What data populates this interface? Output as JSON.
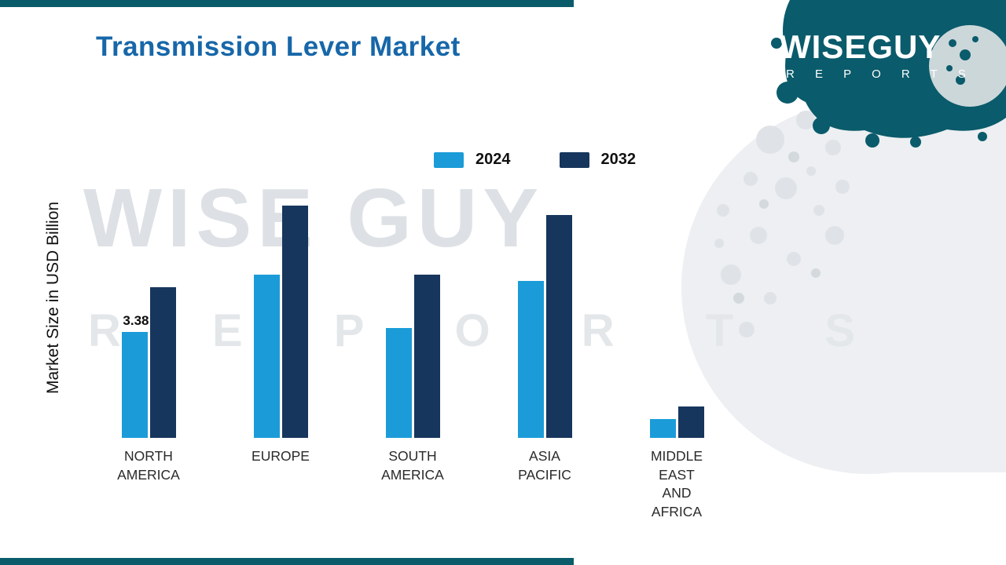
{
  "logo": {
    "line1": "WISEGUY",
    "line2": "R E P O R T S"
  },
  "watermark": {
    "line1": "WISE GUY",
    "line2": "R E P O R T S"
  },
  "chart_data": {
    "type": "bar",
    "title": "Transmission Lever Market",
    "ylabel": "Market Size in USD Billion",
    "xlabel": "",
    "categories": [
      "NORTH\nAMERICA",
      "EUROPE",
      "SOUTH\nAMERICA",
      "ASIA\nPACIFIC",
      "MIDDLE\nEAST\nAND\nAFRICA"
    ],
    "series": [
      {
        "name": "2024",
        "color": "#1b9cd8",
        "values": [
          3.38,
          5.2,
          3.5,
          5.0,
          0.6
        ]
      },
      {
        "name": "2032",
        "color": "#17365d",
        "values": [
          4.8,
          7.4,
          5.2,
          7.1,
          1.0
        ]
      }
    ],
    "data_labels": [
      {
        "series": "2024",
        "category_index": 0,
        "text": "3.38"
      }
    ],
    "ylim": [
      0,
      8
    ],
    "grid": false,
    "legend_position": "top-center"
  },
  "colors": {
    "accent_strip": "#0a5c6b",
    "title_blue": "#1767a9",
    "bar_2024": "#1b9cd8",
    "bar_2032": "#17365d",
    "watermark_gray": "#dde1e5",
    "logo_teal": "#0a5b6b"
  }
}
